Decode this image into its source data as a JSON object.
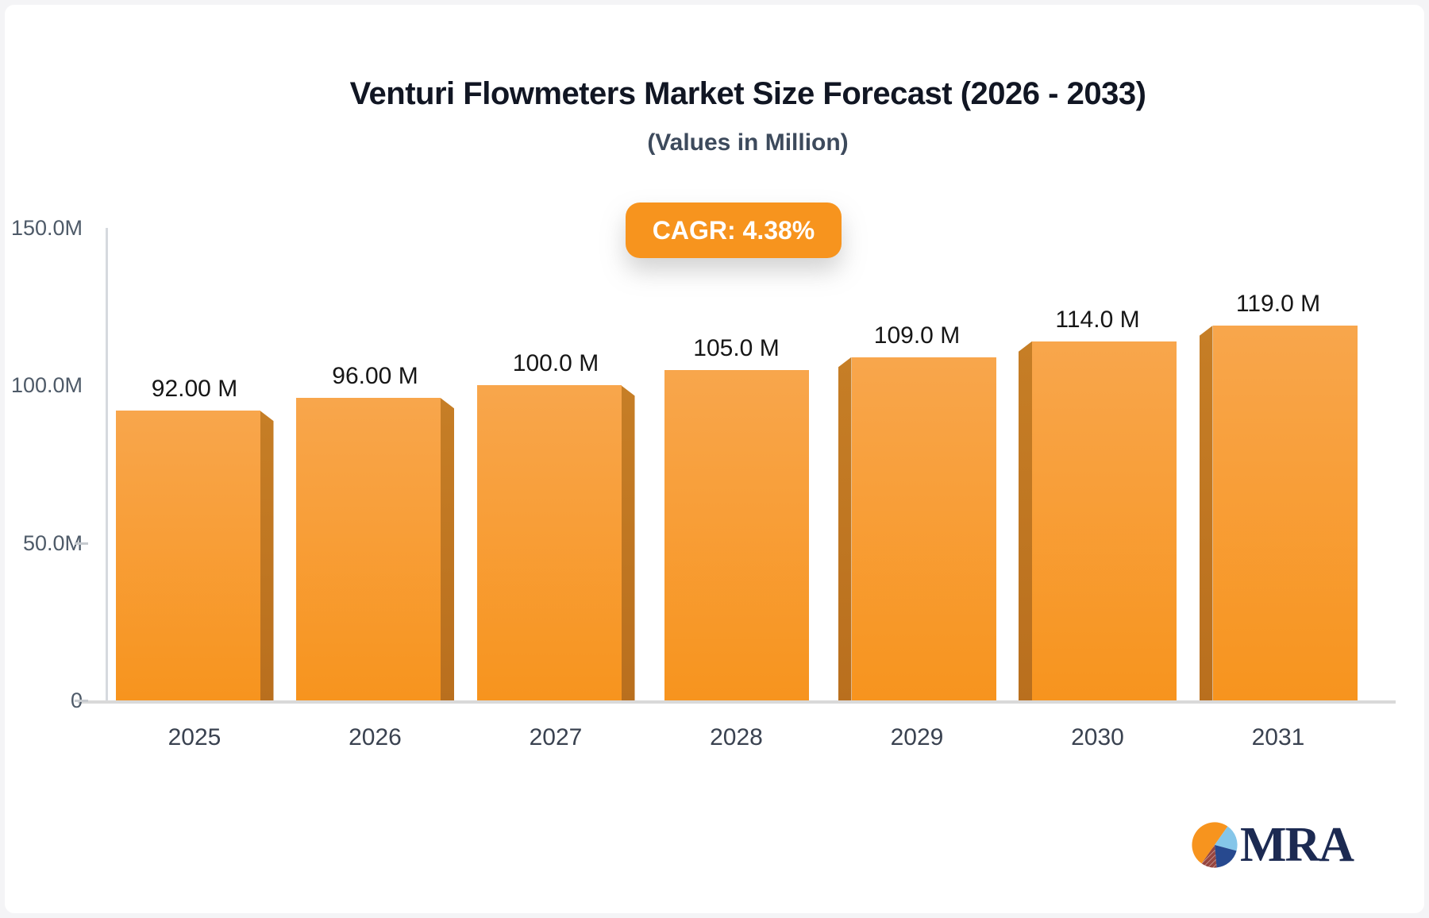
{
  "header": {
    "title": "Venturi Flowmeters Market Size Forecast (2026 - 2033)",
    "subtitle": "(Values in Million)"
  },
  "badge": {
    "label": "CAGR: 4.38%",
    "bg_color": "#F7941E",
    "text_color": "#FFFFFF"
  },
  "logo": {
    "text": "MRA",
    "pie_colors": {
      "orange": "#F7941E",
      "light_blue": "#85C6E9",
      "navy": "#27498F",
      "maroon": "#96453F"
    }
  },
  "chart_data": {
    "type": "bar",
    "title": "Venturi Flowmeters Market Size Forecast (2026 - 2033)",
    "subtitle": "(Values in Million)",
    "annotation": "CAGR: 4.38%",
    "categories": [
      "2025",
      "2026",
      "2027",
      "2028",
      "2029",
      "2030",
      "2031"
    ],
    "values": [
      92,
      96,
      100,
      105,
      109,
      114,
      119
    ],
    "value_labels": [
      "92.00 M",
      "96.00 M",
      "100.0 M",
      "105.0 M",
      "109.0 M",
      "114.0 M",
      "119.0 M"
    ],
    "unit": "Million",
    "ylim": [
      0,
      150
    ],
    "y_ticks": [
      {
        "label": "150.0M",
        "value": 150,
        "dash": false
      },
      {
        "label": "100.0M",
        "value": 100,
        "dash": false
      },
      {
        "label": "50.0M",
        "value": 50,
        "dash": true
      },
      {
        "label": "0",
        "value": 0,
        "dash": true
      }
    ],
    "grid": false,
    "legend": "none",
    "bar_colors": {
      "face_top": "#F8A64C",
      "face_bottom": "#F7941E",
      "side": "#BF7421"
    }
  }
}
